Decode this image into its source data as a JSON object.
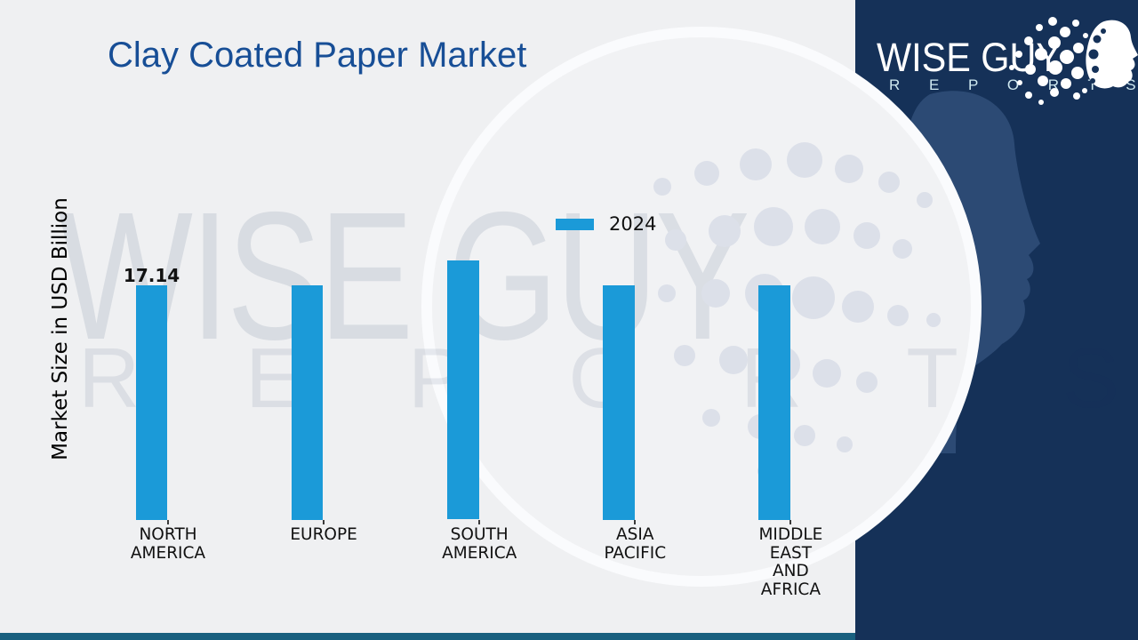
{
  "header": {
    "title": "Clay Coated Paper Market"
  },
  "brand": {
    "name": "WISE GUY",
    "sub": "R E P O R T S"
  },
  "watermark": {
    "line1": "WISE GUY",
    "line2": "R E P O R T S"
  },
  "legend": {
    "year": "2024"
  },
  "chart_data": {
    "type": "bar",
    "title": "Clay Coated Paper Market",
    "ylabel": "Market Size in USD Billion",
    "xlabel": "",
    "categories": [
      "NORTH AMERICA",
      "EUROPE",
      "SOUTH AMERICA",
      "ASIA PACIFIC",
      "MIDDLE EAST AND AFRICA"
    ],
    "category_display": [
      "NORTH\nAMERICA",
      "EUROPE",
      "SOUTH\nAMERICA",
      "ASIA\nPACIFIC",
      "MIDDLE\nEAST\nAND\nAFRICA"
    ],
    "series": [
      {
        "name": "2024",
        "values": [
          17.14,
          17.14,
          18.98,
          17.14,
          17.14
        ]
      }
    ],
    "value_labels": [
      "17.14",
      "",
      "",
      "",
      ""
    ],
    "grid": false,
    "legend_position": "top-right-of-plot",
    "ylim": [
      0,
      20
    ]
  },
  "colors": {
    "bar": "#1b9ad8",
    "panel_navy": "#153158",
    "title_blue": "#174e96",
    "bottom_bar_teal": "#19607f",
    "silhouette_navy": "#2c4a74",
    "page_bg": "#eff0f2"
  }
}
